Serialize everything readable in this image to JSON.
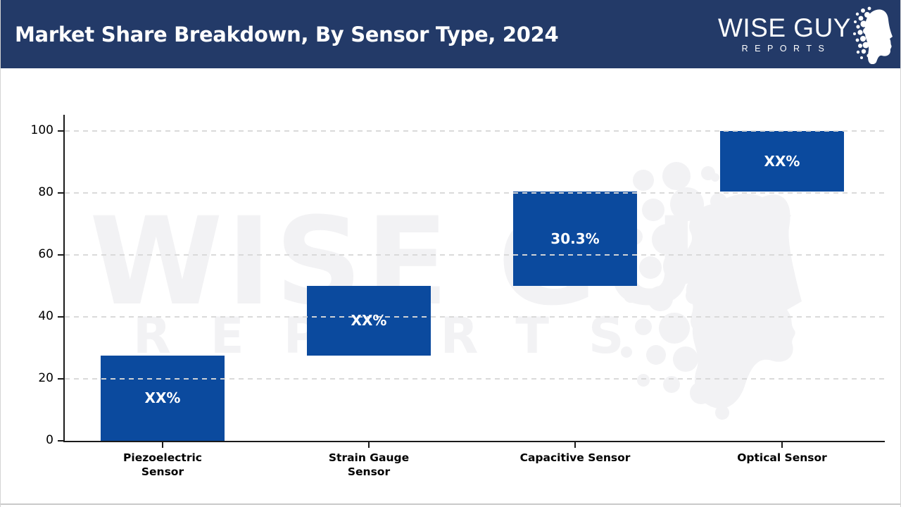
{
  "header": {
    "title": "Market Share Breakdown, By Sensor Type, 2024",
    "logo": {
      "wordmark": "WISE GUY",
      "subtext": "REPORTS"
    }
  },
  "watermark": {
    "wordmark": "WISE GUY",
    "subtext": "REPORTS"
  },
  "colors": {
    "header_bg": "#233a68",
    "bar": "#0b4a9e",
    "bar_label": "#ffffff",
    "grid": "#d8d8d8",
    "axis": "#1a1a1a",
    "tick_label": "#000000",
    "watermark": "#f2f2f4",
    "frame_border": "#d4d4d4"
  },
  "chart_data": {
    "type": "bar",
    "variant": "waterfall",
    "title": "Market Share Breakdown, By Sensor Type, 2024",
    "xlabel": "",
    "ylabel": "",
    "ylim": [
      0,
      105
    ],
    "yticks": [
      0,
      20,
      40,
      60,
      80,
      100
    ],
    "grid": "horizontal-dashed",
    "legend": false,
    "bar_color": "#0b4a9e",
    "categories": [
      "Piezoelectric Sensor",
      "Strain Gauge Sensor",
      "Capacitive Sensor",
      "Optical Sensor"
    ],
    "category_label_lines": [
      [
        "Piezoelectric",
        "Sensor"
      ],
      [
        "Strain Gauge",
        "Sensor"
      ],
      [
        "Capacitive Sensor"
      ],
      [
        "Optical Sensor"
      ]
    ],
    "bars": [
      {
        "category": "Piezoelectric Sensor",
        "start": 0,
        "end": 27.5,
        "value": 27.5,
        "label": "XX%"
      },
      {
        "category": "Strain Gauge Sensor",
        "start": 27.5,
        "end": 50,
        "value": 22.5,
        "label": "XX%"
      },
      {
        "category": "Capacitive Sensor",
        "start": 50,
        "end": 80.3,
        "value": 30.3,
        "label": "30.3%"
      },
      {
        "category": "Optical Sensor",
        "start": 80.3,
        "end": 100,
        "value": 19.7,
        "label": "XX%"
      }
    ]
  }
}
